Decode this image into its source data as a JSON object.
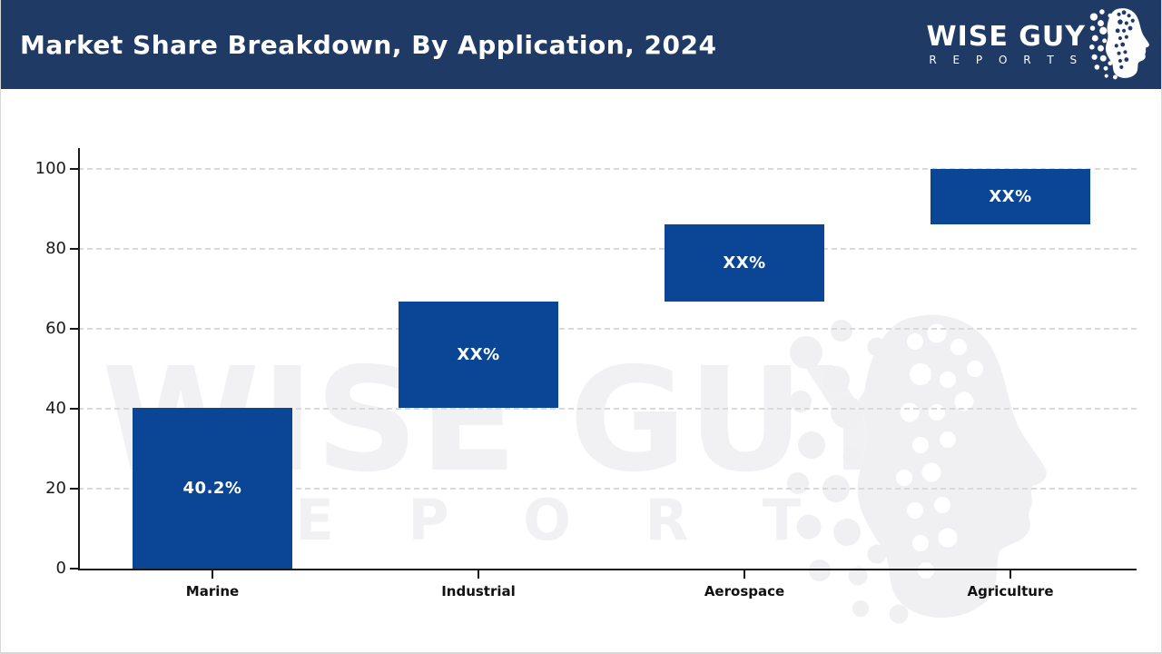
{
  "header": {
    "title": "Market Share Breakdown, By Application, 2024",
    "logo": {
      "name_line": "WISE GUY",
      "sub_line": "R E P O R T S",
      "face_icon": "dotted-face-profile"
    }
  },
  "watermark": {
    "line1": "WISE GUY",
    "line2": "R E P O R T S",
    "face_icon": "dotted-face-profile"
  },
  "chart_data": {
    "type": "bar",
    "variant": "waterfall-floating-bars",
    "title": "Market Share Breakdown, By Application, 2024",
    "categories": [
      "Marine",
      "Industrial",
      "Aerospace",
      "Agriculture"
    ],
    "segments": [
      {
        "category": "Marine",
        "start": 0,
        "end": 40.2,
        "label": "40.2%"
      },
      {
        "category": "Industrial",
        "start": 40.2,
        "end": 66.9,
        "label": "XX%"
      },
      {
        "category": "Aerospace",
        "start": 66.9,
        "end": 86.2,
        "label": "XX%"
      },
      {
        "category": "Agriculture",
        "start": 86.2,
        "end": 100,
        "label": "XX%"
      }
    ],
    "xlabel": "",
    "ylabel": "",
    "ylim": [
      0,
      100
    ],
    "yticks": [
      0,
      20,
      40,
      60,
      80,
      100
    ],
    "grid": "horizontal-dashed",
    "legend": "none"
  },
  "colors": {
    "header_bg": "#203A66",
    "title_text": "#ffffff",
    "bar": "#0A4596",
    "bar_label": "#ffffff",
    "grid": "#d9d9d9",
    "axis": "#1a1a1a",
    "watermark": "#f1f1f4"
  }
}
